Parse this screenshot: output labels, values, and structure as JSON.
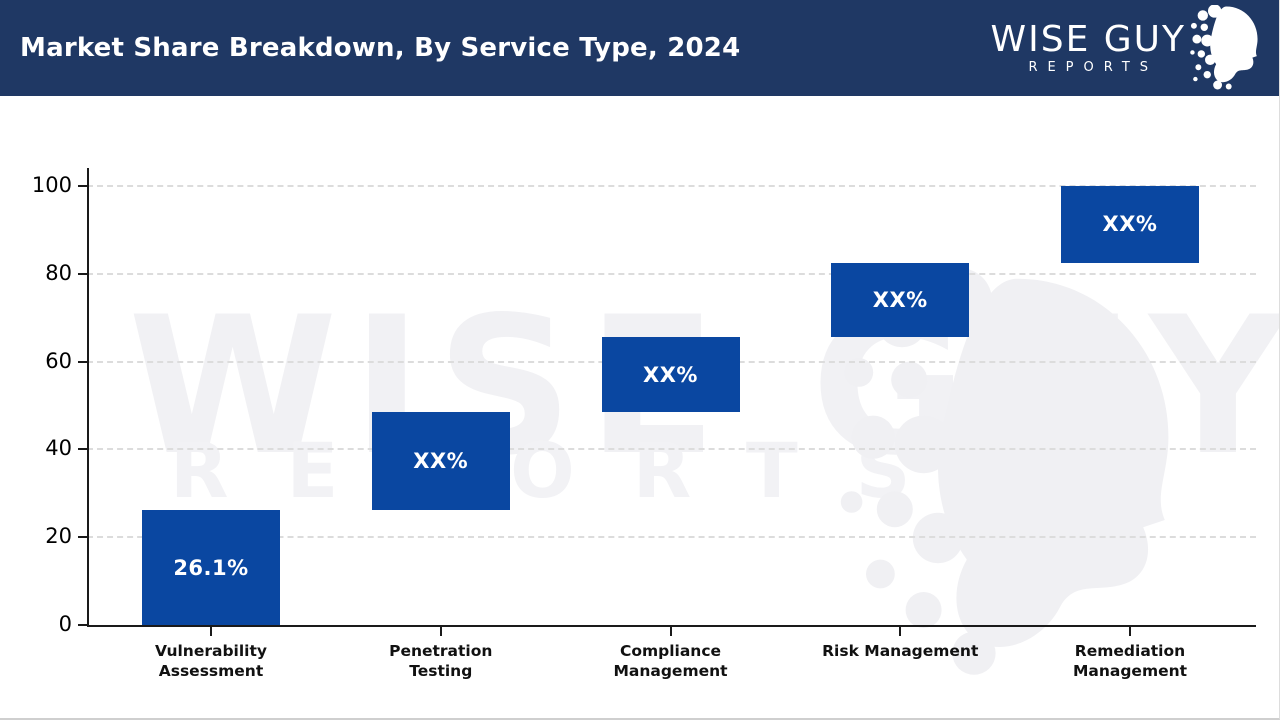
{
  "header": {
    "title": "Market Share Breakdown, By Service Type, 2024",
    "bg_color": "#1f3864",
    "logo": {
      "line1": "WISE GUY",
      "line2": "REPORTS"
    }
  },
  "watermark": {
    "line1": "WISE GUY",
    "line2": "REPORTS"
  },
  "chart_data": {
    "type": "bar",
    "variant": "waterfall",
    "title": "Market Share Breakdown, By Service Type, 2024",
    "categories": [
      "Vulnerability Assessment",
      "Penetration Testing",
      "Compliance Management",
      "Risk Management",
      "Remediation Management"
    ],
    "category_lines": [
      [
        "Vulnerability",
        "Assessment"
      ],
      [
        "Penetration",
        "Testing"
      ],
      [
        "Compliance",
        "Management"
      ],
      [
        "Risk Management"
      ],
      [
        "Remediation",
        "Management"
      ]
    ],
    "segments": [
      {
        "category": "Vulnerability Assessment",
        "start": 0,
        "end": 26.1,
        "label": "26.1%"
      },
      {
        "category": "Penetration Testing",
        "start": 26.1,
        "end": 48.5,
        "label": "XX%"
      },
      {
        "category": "Compliance Management",
        "start": 48.5,
        "end": 65.6,
        "label": "XX%"
      },
      {
        "category": "Risk Management",
        "start": 65.6,
        "end": 82.5,
        "label": "XX%"
      },
      {
        "category": "Remediation Management",
        "start": 82.5,
        "end": 100,
        "label": "XX%"
      }
    ],
    "ylim": [
      0,
      100
    ],
    "yticks": [
      0,
      20,
      40,
      60,
      80,
      100
    ],
    "ytick_labels": [
      "0",
      "20",
      "40",
      "60",
      "80",
      "100"
    ],
    "xlabel": "",
    "ylabel": "",
    "legend": "none",
    "grid": {
      "horizontal": true,
      "style": "dashed",
      "color": "#dcdcdc"
    },
    "bar_color": "#0a47a1",
    "bar_label_color": "#ffffff",
    "axis_color": "#1a1a1a"
  }
}
